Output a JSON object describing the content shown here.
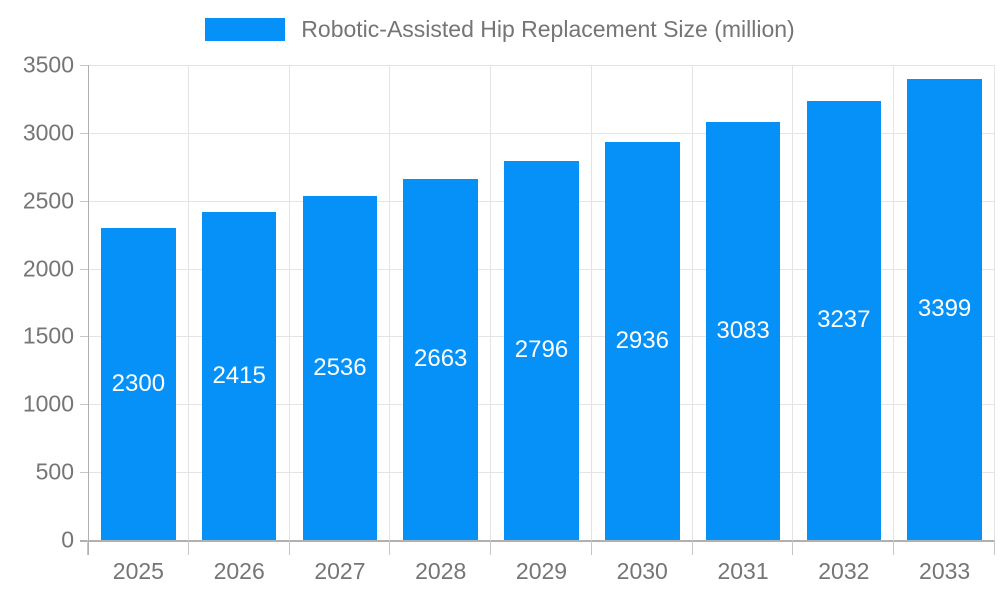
{
  "chart_data": {
    "type": "bar",
    "title": "Robotic-Assisted Hip Replacement Size (million)",
    "legend": {
      "label": "Robotic-Assisted Hip Replacement Size (million)",
      "position": "top-center"
    },
    "categories": [
      "2025",
      "2026",
      "2027",
      "2028",
      "2029",
      "2030",
      "2031",
      "2032",
      "2033"
    ],
    "series": [
      {
        "name": "Robotic-Assisted Hip Replacement Size (million)",
        "values": [
          2300,
          2415,
          2536,
          2663,
          2796,
          2936,
          3083,
          3237,
          3399
        ]
      }
    ],
    "bar_labels": [
      "2300",
      "2415",
      "2536",
      "2663",
      "2796",
      "2936",
      "3083",
      "3237",
      "3399"
    ],
    "xlabel": "",
    "ylabel": "",
    "ylim": [
      0,
      3500
    ],
    "yticks": [
      0,
      500,
      1000,
      1500,
      2000,
      2500,
      3000,
      3500
    ],
    "grid": true,
    "colors": {
      "bar": "#0591f8",
      "bar_label": "#ffffff",
      "axis_text": "#757575",
      "legend_text": "#757575",
      "gridline": "#e4e4e4",
      "axis_line": "#b0b0b0",
      "tick": "#c6c6c6",
      "background": "#ffffff"
    }
  }
}
